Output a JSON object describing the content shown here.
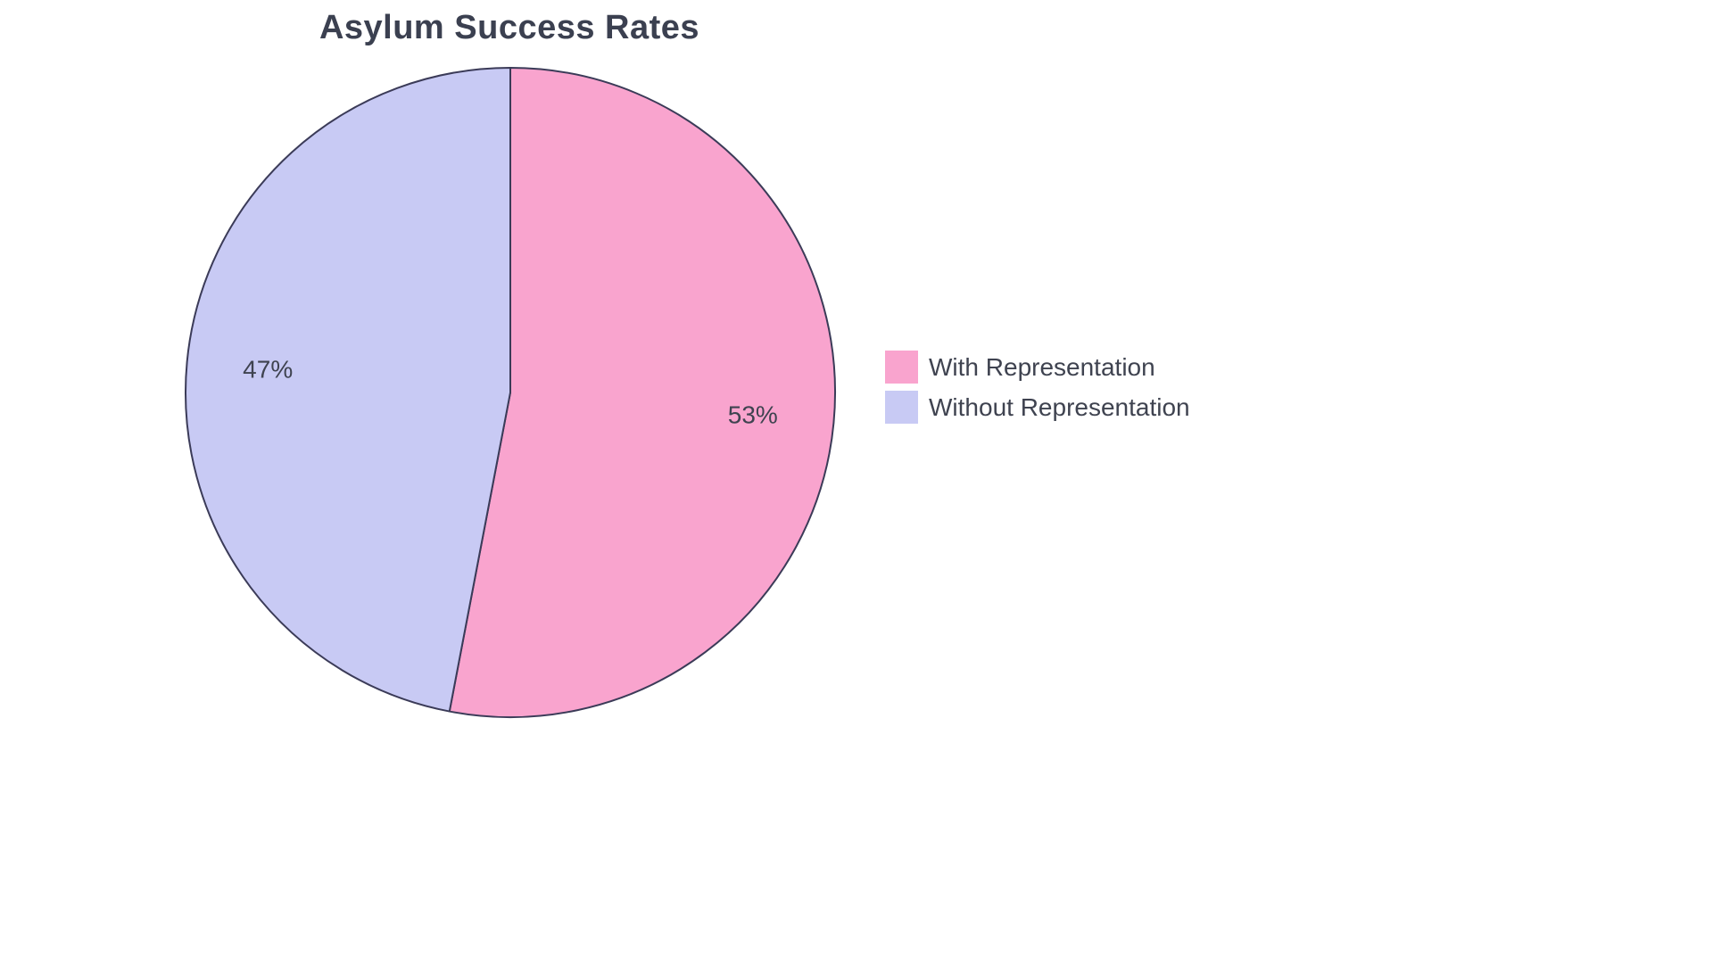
{
  "title": "Asylum Success Rates",
  "chart_data": {
    "type": "pie",
    "title": "Asylum Success Rates",
    "slices": [
      {
        "label": "With Representation",
        "value": 53,
        "pct_label": "53%",
        "color": "#F9A4CE"
      },
      {
        "label": "Without Representation",
        "value": 47,
        "pct_label": "47%",
        "color": "#C8CAF4"
      }
    ],
    "start_angle_deg": 0,
    "direction": "clockwise",
    "legend_position": "right",
    "stroke_color": "#3B3B58",
    "label_color": "#3F4350",
    "background": "#FFFFFF"
  }
}
